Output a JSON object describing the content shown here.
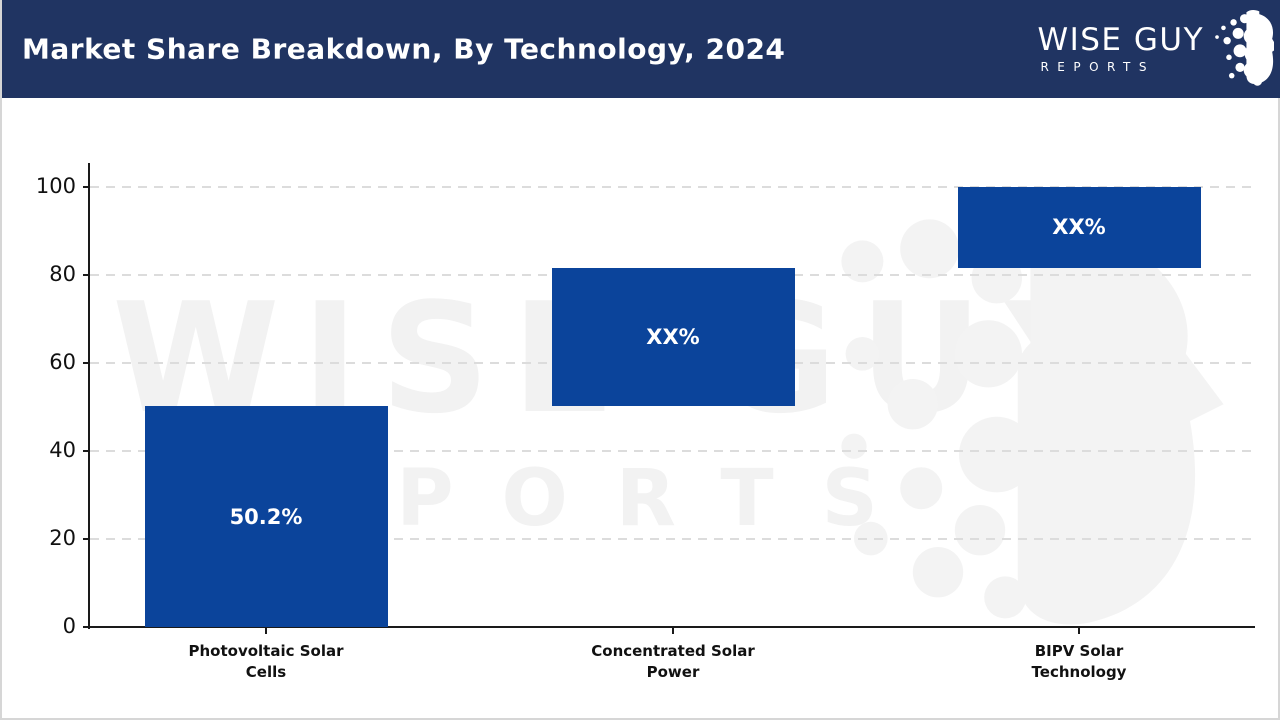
{
  "header": {
    "title": "Market Share Breakdown, By Technology, 2024",
    "bg_color": "#203462",
    "logo": {
      "line1": "WISE GUY",
      "line2": "REPORTS"
    }
  },
  "watermark": {
    "line1": "WISE GUY",
    "line2": "REPORTS"
  },
  "chart_data": {
    "type": "bar",
    "subtype": "waterfall",
    "title": "Market Share Breakdown, By Technology, 2024",
    "categories": [
      [
        "Photovoltaic Solar",
        "Cells"
      ],
      [
        "Concentrated Solar",
        "Power"
      ],
      [
        "BIPV Solar",
        "Technology"
      ]
    ],
    "series": [
      {
        "name": "Market share (%)",
        "segments": [
          {
            "from": 0,
            "to": 50.2,
            "label": "50.2%"
          },
          {
            "from": 50.2,
            "to": 81.7,
            "label": "XX%"
          },
          {
            "from": 81.7,
            "to": 100,
            "label": "XX%"
          }
        ]
      }
    ],
    "ylim": [
      0,
      105
    ],
    "yticks": [
      0,
      20,
      40,
      60,
      80,
      100
    ],
    "grid": "horizontal-dashed",
    "legend": "none",
    "bar_color": "#0b449b",
    "bar_label_color": "#ffffff",
    "axis_color": "#1a1a1a",
    "grid_color": "#dcdcdc",
    "xlabel": "",
    "ylabel": ""
  }
}
